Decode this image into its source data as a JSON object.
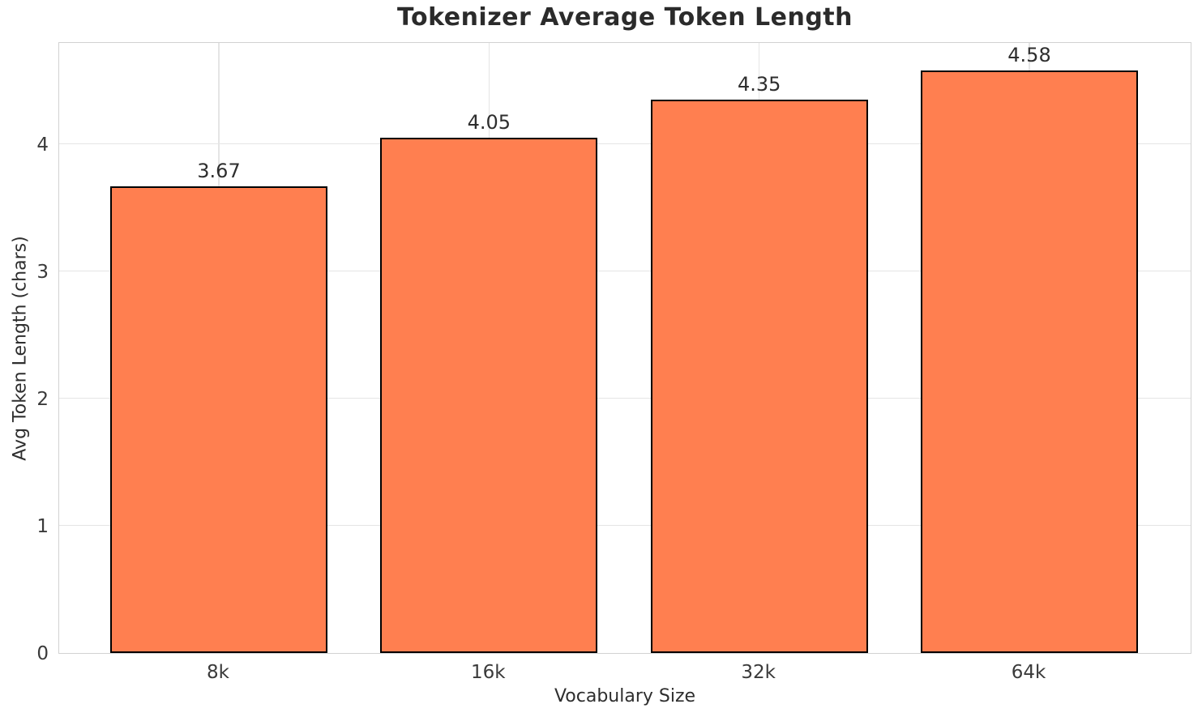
{
  "chart_data": {
    "type": "bar",
    "title": "Tokenizer Average Token Length",
    "xlabel": "Vocabulary Size",
    "ylabel": "Avg Token Length (chars)",
    "categories": [
      "8k",
      "16k",
      "32k",
      "64k"
    ],
    "values": [
      3.67,
      4.05,
      4.35,
      4.58
    ],
    "value_labels": [
      "3.67",
      "4.05",
      "4.35",
      "4.58"
    ],
    "yticks": [
      0,
      1,
      2,
      3,
      4
    ],
    "ytick_labels": [
      "0",
      "1",
      "2",
      "3",
      "4"
    ],
    "ylim": [
      0,
      4.81
    ],
    "grid": true,
    "legend": false,
    "colors": {
      "bar_fill": "#FF7F50",
      "bar_edge": "#000000",
      "grid_line": "#e5e5e5",
      "spine": "#d2d2d2",
      "text": "#262626",
      "background": "#ffffff"
    }
  }
}
